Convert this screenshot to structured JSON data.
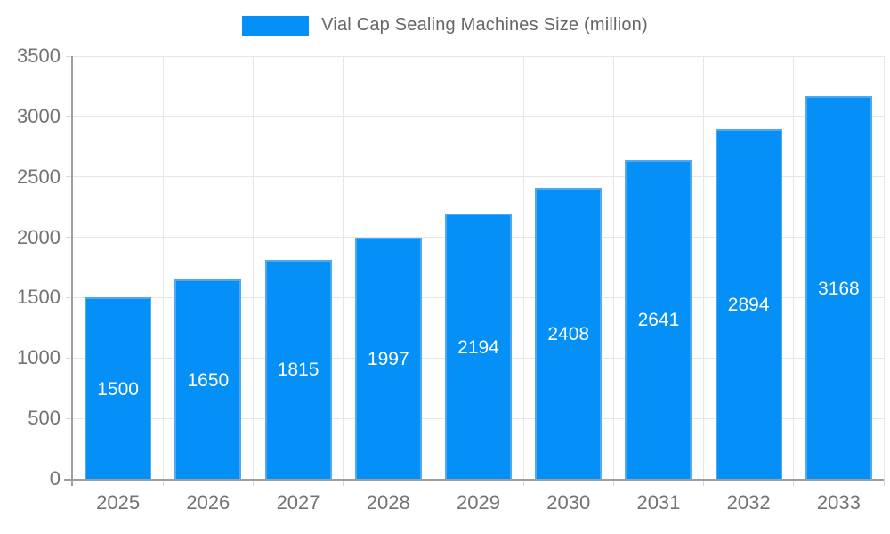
{
  "legend": {
    "label": "Vial Cap Sealing Machines Size (million)"
  },
  "chart_data": {
    "type": "bar",
    "categories": [
      "2025",
      "2026",
      "2027",
      "2028",
      "2029",
      "2030",
      "2031",
      "2032",
      "2033"
    ],
    "series": [
      {
        "name": "Vial Cap Sealing Machines Size (million)",
        "values": [
          1500,
          1650,
          1815,
          1997,
          2194,
          2408,
          2641,
          2894,
          3168
        ]
      }
    ],
    "title": "",
    "xlabel": "",
    "ylabel": "",
    "ylim": [
      0,
      3500
    ],
    "yticks": [
      0,
      500,
      1000,
      1500,
      2000,
      2500,
      3000,
      3500
    ],
    "grid": true,
    "legend_position": "top",
    "data_label_position": "inside-center",
    "colors": {
      "bar_fill": "#0590F8",
      "bar_border": "#4FA9F2",
      "gridline": "#E6E6E6",
      "tick_mark": "#D8D8D8",
      "axis_line": "#9E9E9E",
      "axis_tick_label": "#737373",
      "value_label": "#FFFFFF",
      "legend_text": "#666666"
    }
  }
}
